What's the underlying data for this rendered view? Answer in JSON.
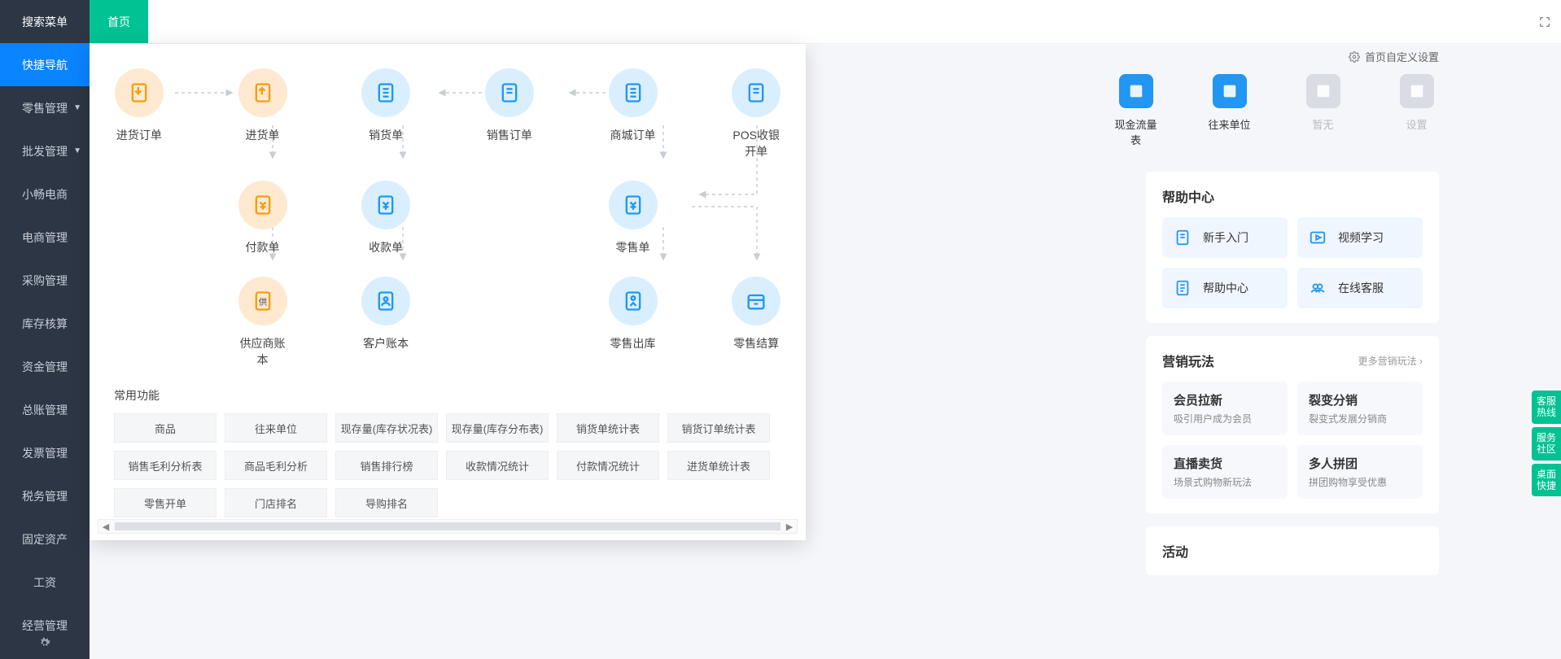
{
  "sidebar": {
    "search": "搜索菜单",
    "items": [
      {
        "label": "快捷导航",
        "active": true,
        "expandable": false
      },
      {
        "label": "零售管理",
        "expandable": true
      },
      {
        "label": "批发管理",
        "expandable": true
      },
      {
        "label": "小畅电商"
      },
      {
        "label": "电商管理"
      },
      {
        "label": "采购管理"
      },
      {
        "label": "库存核算"
      },
      {
        "label": "资金管理"
      },
      {
        "label": "总账管理"
      },
      {
        "label": "发票管理"
      },
      {
        "label": "税务管理"
      },
      {
        "label": "固定资产"
      },
      {
        "label": "工资"
      },
      {
        "label": "经营管理"
      }
    ]
  },
  "topbar": {
    "tab": "首页"
  },
  "customize_link": "首页自定义设置",
  "shortcuts": [
    {
      "label": "现金流量表",
      "color": "blue"
    },
    {
      "label": "往来单位",
      "color": "blue"
    },
    {
      "label": "暂无",
      "color": "grey"
    },
    {
      "label": "设置",
      "color": "grey"
    }
  ],
  "help": {
    "title": "帮助中心",
    "items": [
      "新手入门",
      "视频学习",
      "帮助中心",
      "在线客服"
    ]
  },
  "marketing": {
    "title": "营销玩法",
    "more": "更多营销玩法",
    "items": [
      {
        "t": "会员拉新",
        "d": "吸引用户成为会员"
      },
      {
        "t": "裂变分销",
        "d": "裂变式发展分销商"
      },
      {
        "t": "直播卖货",
        "d": "场景式购物新玩法"
      },
      {
        "t": "多人拼团",
        "d": "拼团购物享受优惠"
      }
    ]
  },
  "activity": {
    "title": "活动"
  },
  "floats": [
    "客服热线",
    "服务社区",
    "桌面快捷"
  ],
  "flyout": {
    "colors": {
      "orange_bg": "#ffe9d1",
      "orange_stroke": "#f59e0b",
      "blue_bg": "#d9efff",
      "blue_stroke": "#2196f3",
      "arrow": "#c9ced6"
    },
    "rows": [
      [
        {
          "label": "进货订单",
          "color": "orange",
          "icon": "doc-in"
        },
        {
          "label": "进货单",
          "color": "orange",
          "icon": "doc-out"
        },
        {
          "label": "销货单",
          "color": "blue",
          "icon": "list"
        },
        {
          "label": "销售订单",
          "color": "blue",
          "icon": "doc"
        },
        {
          "label": "商城订单",
          "color": "blue",
          "icon": "list"
        },
        {
          "label": "POS收银开单",
          "color": "blue",
          "icon": "doc"
        }
      ],
      [
        null,
        {
          "label": "付款单",
          "color": "orange",
          "icon": "money"
        },
        {
          "label": "收款单",
          "color": "blue",
          "icon": "money"
        },
        null,
        {
          "label": "零售单",
          "color": "blue",
          "icon": "money"
        },
        null
      ],
      [
        null,
        {
          "label": "供应商账本",
          "color": "orange",
          "icon": "supplier"
        },
        {
          "label": "客户账本",
          "color": "blue",
          "icon": "customer"
        },
        null,
        {
          "label": "零售出库",
          "color": "blue",
          "icon": "out"
        },
        {
          "label": "零售结算",
          "color": "blue",
          "icon": "settle"
        }
      ]
    ],
    "common_title": "常用功能",
    "buttons": [
      "商品",
      "往来单位",
      "现存量(库存状况表)",
      "现存量(库存分布表)",
      "销货单统计表",
      "销货订单统计表",
      "销售毛利分析表",
      "商品毛利分析",
      "销售排行榜",
      "收款情况统计",
      "付款情况统计",
      "进货单统计表",
      "零售开单",
      "门店排名",
      "导购排名"
    ]
  }
}
